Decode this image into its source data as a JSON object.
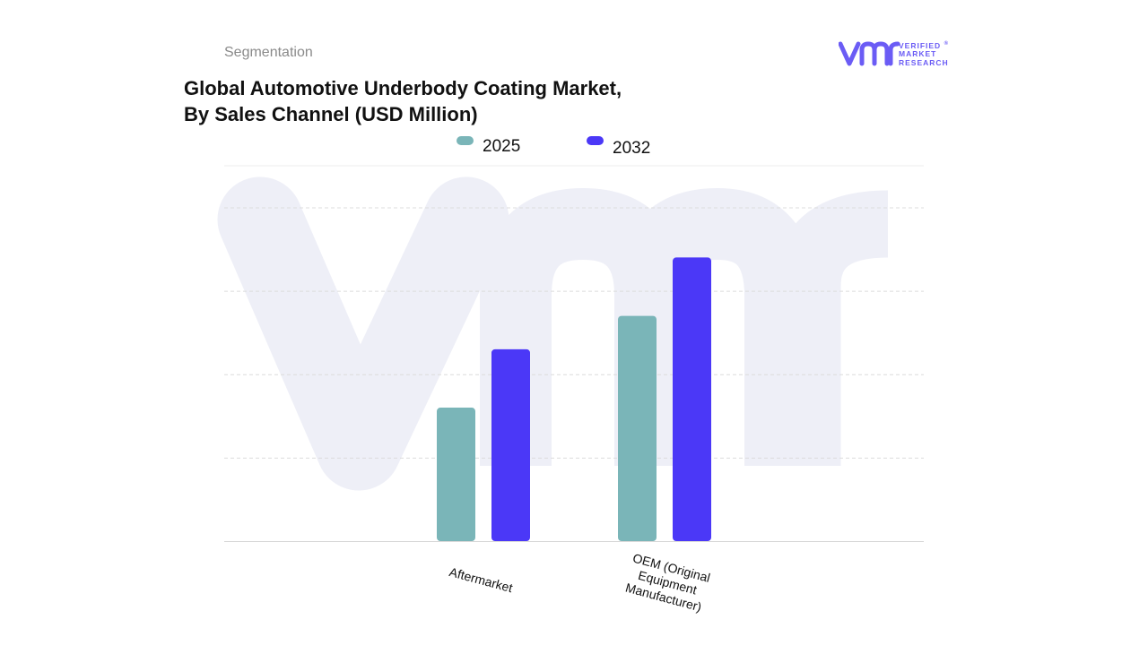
{
  "header": {
    "section_label": "Segmentation",
    "title_line1": "Global Automotive Underbody Coating Market,",
    "title_line2": "By Sales Channel (USD Million)"
  },
  "brand": {
    "mark": "vmr",
    "line1": "VERIFIED",
    "line2": "MARKET",
    "line3": "RESEARCH",
    "registered": "®"
  },
  "colors": {
    "series_2025": "#7ab5b8",
    "series_2032": "#4b38f7",
    "watermark": "#eeeff7",
    "grid": "#dcdcdc",
    "brand": "#6b5cf5"
  },
  "chart_data": {
    "type": "bar",
    "title": "Global Automotive Underbody Coating Market, By Sales Channel (USD Million)",
    "categories": [
      "Aftermarket",
      "OEM (Original Equipment Manufacturer)"
    ],
    "category_lines": [
      [
        "Aftermarket"
      ],
      [
        "OEM (Original",
        "Equipment",
        "Manufacturer)"
      ]
    ],
    "series": [
      {
        "name": "2025",
        "values": [
          32,
          54
        ]
      },
      {
        "name": "2032",
        "values": [
          46,
          68
        ]
      }
    ],
    "ylim": [
      0,
      90
    ],
    "y_tick_labels_shown": false,
    "grid": true,
    "legend_position": "top-center",
    "xlabel": "",
    "ylabel": ""
  }
}
